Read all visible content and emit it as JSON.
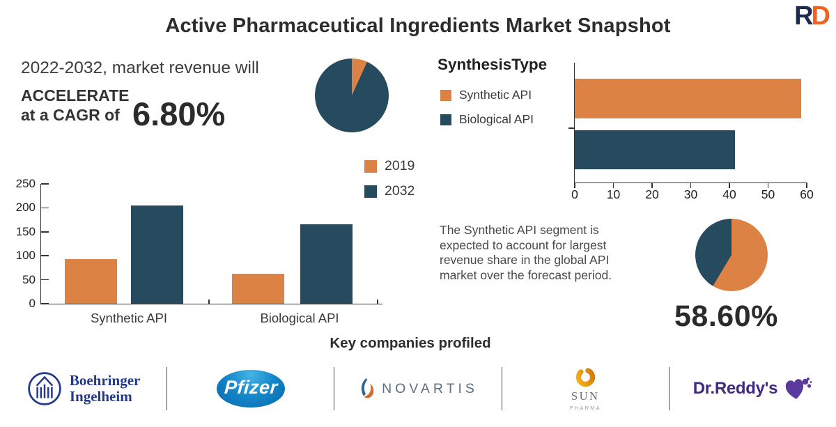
{
  "page": {
    "title": "Active Pharmaceutical Ingredients Market Snapshot",
    "brand": {
      "letter_r": "R",
      "letter_d": "D"
    }
  },
  "theme": {
    "orange": "#DC8244",
    "navy": "#264A5E",
    "text_dark": "#2D2D2D",
    "text_body": "#4A4A4A"
  },
  "intro": {
    "line1": "2022-2032, market revenue will",
    "emphasis_line1": "ACCELERATE",
    "emphasis_line2": "at a CAGR of",
    "cagr_value": "6.80%"
  },
  "insight": {
    "text": "The Synthetic API segment is expected to account for largest revenue share in the global API market over the forecast period."
  },
  "share_callout": "58.60%",
  "key_companies": {
    "heading": "Key companies profiled",
    "companies": [
      {
        "name": "Boehringer Ingelheim",
        "lines": [
          "Boehringer",
          "Ingelheim"
        ]
      },
      {
        "name": "Pfizer",
        "wordmark": "Pfizer"
      },
      {
        "name": "Novartis",
        "wordmark": "NOVARTIS"
      },
      {
        "name": "Sun Pharma",
        "lines": [
          "SUN",
          "PHARMA"
        ]
      },
      {
        "name": "Dr. Reddy's",
        "wordmark": "Dr.Reddy's"
      }
    ]
  },
  "chart_data": [
    {
      "id": "revenue-by-synthesis-type",
      "type": "bar",
      "categories": [
        "Synthetic API",
        "Biological API"
      ],
      "series": [
        {
          "name": "2019",
          "color_key": "orange",
          "values": [
            93,
            63
          ]
        },
        {
          "name": "2032",
          "color_key": "navy",
          "values": [
            205,
            165
          ]
        }
      ],
      "ylim": [
        0,
        250
      ],
      "yticks": [
        0,
        50,
        100,
        150,
        200,
        250
      ],
      "xlabel": "",
      "ylabel": "",
      "legend_position": "top-right",
      "grid": false
    },
    {
      "id": "cagr-pie",
      "type": "pie",
      "values": [
        6.8,
        93.2
      ],
      "colors": [
        "orange",
        "navy"
      ],
      "start_angle_deg": 0,
      "direction": "clockwise"
    },
    {
      "id": "synthesis-type-share",
      "type": "bar",
      "orientation": "horizontal",
      "title": "SynthesisType",
      "categories": [
        "Synthetic API",
        "Biological API"
      ],
      "values": [
        58.6,
        41.4
      ],
      "colors": [
        "orange",
        "navy"
      ],
      "legend": [
        "Synthetic API",
        "Biological API"
      ],
      "xlim": [
        0,
        60
      ],
      "xticks": [
        0,
        10,
        20,
        30,
        40,
        50,
        60
      ],
      "grid": false
    },
    {
      "id": "synthetic-share-pie",
      "type": "pie",
      "values": [
        58.6,
        41.4
      ],
      "colors": [
        "orange",
        "navy"
      ],
      "start_angle_deg": 0,
      "direction": "clockwise",
      "label": "58.60%"
    }
  ]
}
